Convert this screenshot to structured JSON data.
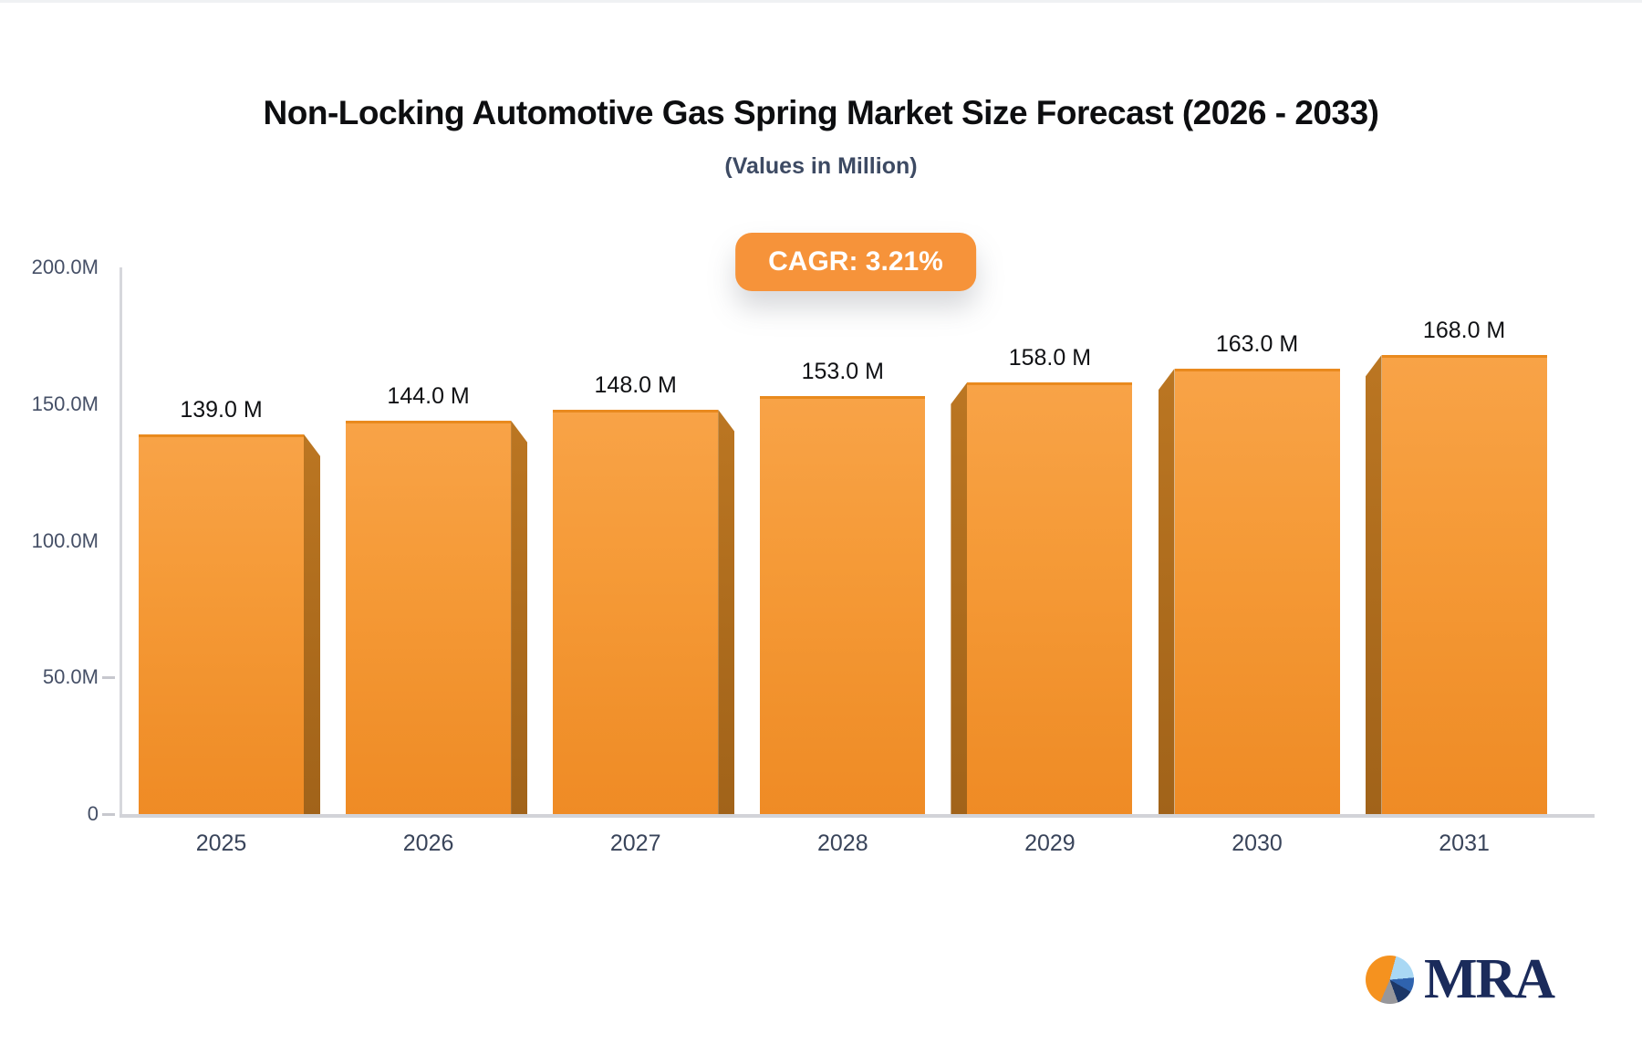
{
  "title": "Non-Locking Automotive Gas Spring Market Size Forecast (2026 - 2033)",
  "subtitle": "(Values in Million)",
  "badge": {
    "label": "CAGR: 3.21%"
  },
  "chart_data": {
    "type": "bar",
    "categories": [
      "2025",
      "2026",
      "2027",
      "2028",
      "2029",
      "2030",
      "2031"
    ],
    "values": [
      139,
      144,
      148,
      153,
      158,
      163,
      168
    ],
    "bar_labels": [
      "139.0 M",
      "144.0 M",
      "148.0 M",
      "153.0 M",
      "158.0 M",
      "163.0 M",
      "168.0 M"
    ],
    "title": "Non-Locking Automotive Gas Spring Market Size Forecast (2026 - 2033)",
    "xlabel": "",
    "ylabel": "",
    "ylim": [
      0,
      200
    ],
    "y_ticks": [
      {
        "label": "200.0M",
        "value": 200
      },
      {
        "label": "150.0M",
        "value": 150
      },
      {
        "label": "100.0M",
        "value": 100
      },
      {
        "label": "50.0M",
        "value": 50
      },
      {
        "label": "0",
        "value": 0
      }
    ],
    "dash_tick_values": [
      50,
      0
    ],
    "grid": "off",
    "legend": "none",
    "bar_color": "#F39A37",
    "bar_side_color": "#AB6A1C",
    "value_label_unit": "M"
  },
  "colors": {
    "accent_orange": "#F6933A",
    "axis_gray": "#D4D5DA",
    "title_text": "#0D0E10",
    "subtitle_text": "#3D4A63",
    "tick_text": "#454F66",
    "logo_navy": "#1B2B5B",
    "logo_light_blue": "#A9D8F4",
    "logo_blue": "#2F63AE",
    "logo_dark_navy": "#1C3767",
    "logo_gray": "#97979B"
  },
  "logo": {
    "text": "MRA"
  }
}
